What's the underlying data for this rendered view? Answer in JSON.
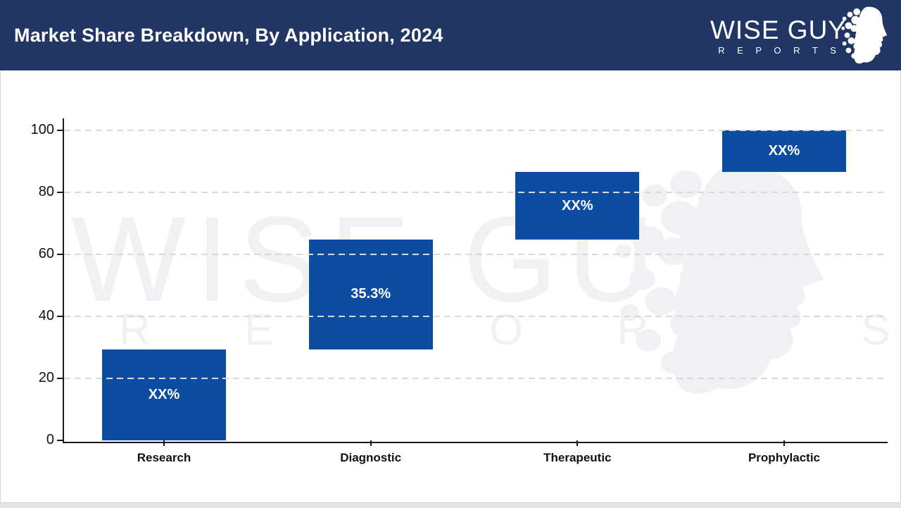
{
  "header": {
    "title": "Market Share Breakdown, By Application, 2024",
    "logo": {
      "line1": "WISE GUY",
      "line2": "R E P O R T S",
      "face_icon": "dotted-head-profile"
    }
  },
  "watermark": {
    "line1": "WISE GUY",
    "line2": "R E P O R T S",
    "face_icon": "dotted-head-profile"
  },
  "colors": {
    "header_bg": "#213665",
    "bar": "#0c4da2",
    "grid": "#d9d9d9",
    "axis": "#1a1a1a",
    "bar_label": "#ffffff",
    "watermark": "#f1f1f4"
  },
  "chart_data": {
    "type": "bar",
    "variant": "floating-waterfall",
    "title": "Market Share Breakdown, By Application, 2024",
    "categories": [
      "Research",
      "Diagnostic",
      "Therapeutic",
      "Prophylactic"
    ],
    "segments": [
      {
        "category": "Research",
        "start": 0,
        "end": 29.4,
        "label": "XX%"
      },
      {
        "category": "Diagnostic",
        "start": 29.4,
        "end": 64.7,
        "label": "35.3%"
      },
      {
        "category": "Therapeutic",
        "start": 64.7,
        "end": 86.5,
        "label": "XX%"
      },
      {
        "category": "Prophylactic",
        "start": 86.5,
        "end": 100,
        "label": "XX%"
      }
    ],
    "xlabel": "",
    "ylabel": "",
    "ylim": [
      0,
      100
    ],
    "yticks": [
      0,
      20,
      40,
      60,
      80,
      100
    ],
    "grid": "horizontal-dashed",
    "legend": "none"
  }
}
